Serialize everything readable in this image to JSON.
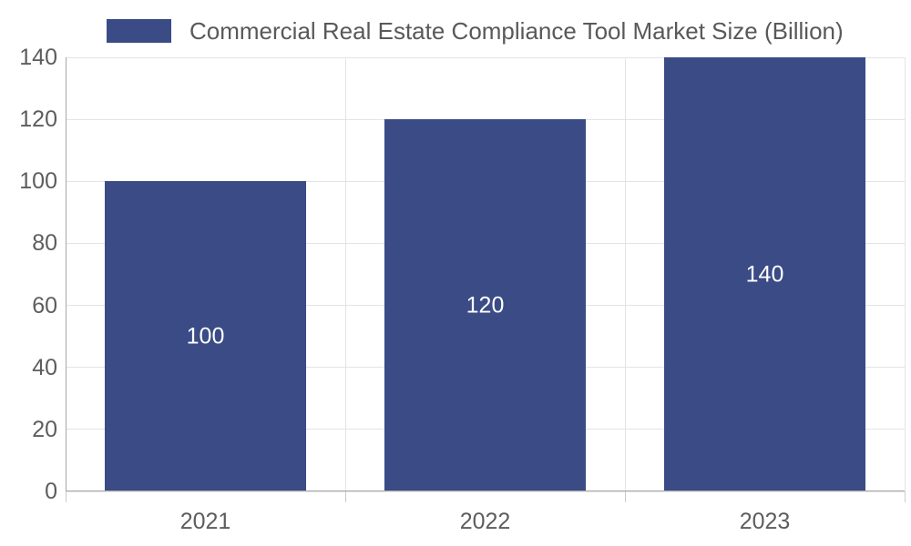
{
  "chart_data": {
    "type": "bar",
    "legend_label": "Commercial Real Estate Compliance Tool Market Size (Billion)",
    "categories": [
      "2021",
      "2022",
      "2023"
    ],
    "values": [
      100,
      120,
      140
    ],
    "bar_value_labels": [
      "100",
      "120",
      "140"
    ],
    "title": "",
    "xlabel": "",
    "ylabel": "",
    "ylim": [
      0,
      140
    ],
    "yticks": [
      0,
      20,
      40,
      60,
      80,
      100,
      120,
      140
    ],
    "grid": true,
    "legend_position": "top-left",
    "value_labels_inside_bars": true,
    "colors": {
      "bar": "#3A4B86",
      "bar_label_text": "#ffffff",
      "grid_line": "#e4e4e4",
      "axis_line": "#a8a8a8",
      "tick_mark": "#c9c9d6",
      "tick_label": "#5d5d5d",
      "legend_text": "#595959",
      "background": "#ffffff"
    }
  }
}
